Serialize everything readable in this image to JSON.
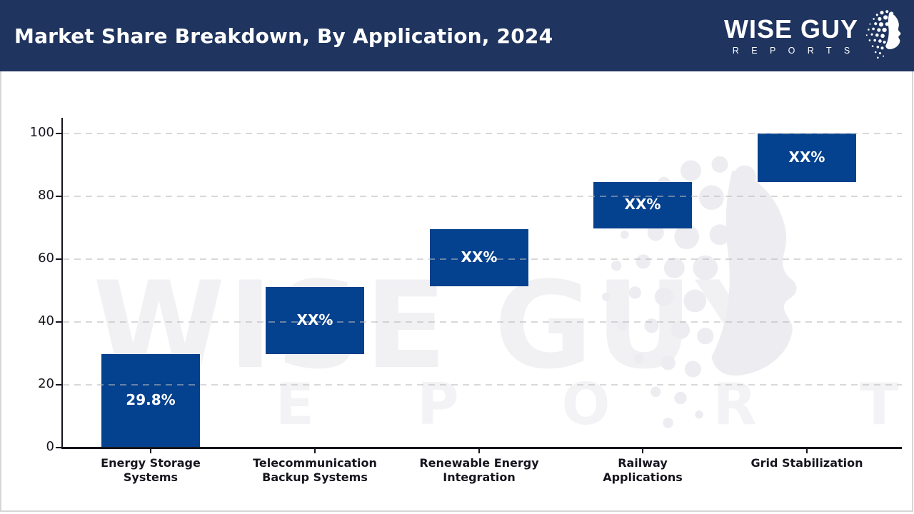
{
  "header": {
    "title": "Market Share Breakdown, By Application, 2024",
    "logo": {
      "name": "WISE GUY",
      "tagline": "R E P O R T S"
    }
  },
  "watermark": {
    "line1": "WISE GUY",
    "line2": "R E P O R T S"
  },
  "colors": {
    "header_bg": "#1f345f",
    "bar": "#04418e",
    "bar_label": "#ffffff",
    "axis": "#15151e",
    "gridline": "#d9d9d9",
    "watermark": "#f1f1f4"
  },
  "chart_data": {
    "type": "bar",
    "subtype": "waterfall",
    "title": "Market Share Breakdown, By Application, 2024",
    "xlabel": "",
    "ylabel": "",
    "ylim": [
      0,
      100
    ],
    "yticks": [
      0,
      20,
      40,
      60,
      80,
      100
    ],
    "grid": "horizontal-dashed",
    "legend": "none",
    "categories": [
      "Energy Storage Systems",
      "Telecommunication Backup Systems",
      "Renewable Energy Integration",
      "Railway Applications",
      "Grid Stabilization"
    ],
    "category_label_lines": [
      [
        "Energy Storage",
        "Systems"
      ],
      [
        "Telecommunication",
        "Backup Systems"
      ],
      [
        "Renewable Energy",
        "Integration"
      ],
      [
        "Railway",
        "Applications"
      ],
      [
        "Grid Stabilization"
      ]
    ],
    "segments": [
      {
        "category": "Energy Storage Systems",
        "start": 0,
        "end": 29.8,
        "label": "29.8%"
      },
      {
        "category": "Telecommunication Backup Systems",
        "start": 29.8,
        "end": 51.2,
        "label": "XX%"
      },
      {
        "category": "Renewable Energy Integration",
        "start": 51.3,
        "end": 69.6,
        "label": "XX%"
      },
      {
        "category": "Railway Applications",
        "start": 69.8,
        "end": 84.6,
        "label": "XX%"
      },
      {
        "category": "Grid Stabilization",
        "start": 84.6,
        "end": 100,
        "label": "XX%"
      }
    ]
  }
}
